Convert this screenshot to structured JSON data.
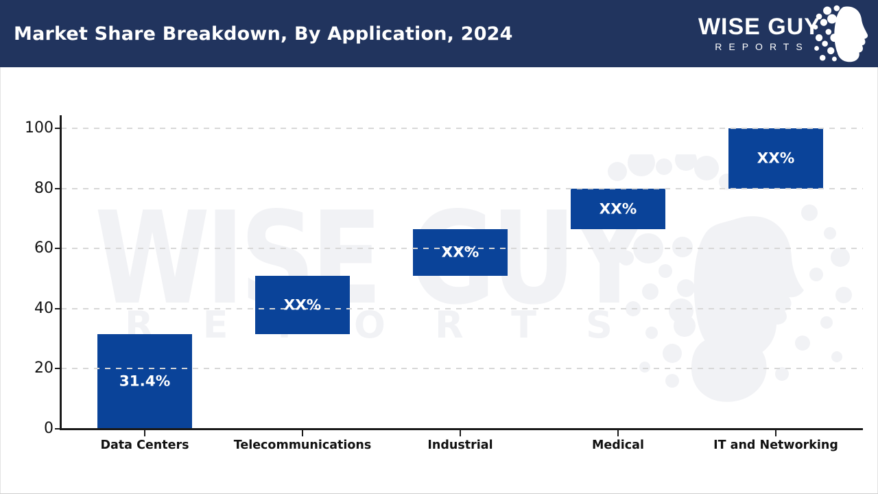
{
  "header": {
    "title": "Market Share Breakdown, By Application, 2024",
    "background_color": "#21345E",
    "logo": {
      "line1": "WISE GUY",
      "line2": "REPORTS"
    }
  },
  "watermark": {
    "line1": "WISE GUY",
    "line2": "REPORTS",
    "color": "#f1f2f5"
  },
  "chart_data": {
    "type": "bar",
    "subtype": "waterfall",
    "title": "Market Share Breakdown, By Application, 2024",
    "categories": [
      "Data Centers",
      "Telecommunications",
      "Industrial",
      "Medical",
      "IT and Networking"
    ],
    "segments": [
      {
        "category": "Data Centers",
        "start": 0,
        "end": 31.4,
        "label": "31.4%"
      },
      {
        "category": "Telecommunications",
        "start": 31.4,
        "end": 51.0,
        "label": "XX%"
      },
      {
        "category": "Industrial",
        "start": 51.0,
        "end": 66.5,
        "label": "XX%"
      },
      {
        "category": "Medical",
        "start": 66.5,
        "end": 79.8,
        "label": "XX%"
      },
      {
        "category": "IT and Networking",
        "start": 79.8,
        "end": 100,
        "label": "XX%"
      }
    ],
    "y_ticks": [
      0,
      20,
      40,
      60,
      80,
      100
    ],
    "ylim": [
      0,
      105
    ],
    "bar_color": "#0A4399",
    "bar_value_color": "#ffffff",
    "grid": "dashed-horizontal",
    "grid_color": "#d7d7d7",
    "legend": "none",
    "xlabel": "",
    "ylabel": ""
  }
}
